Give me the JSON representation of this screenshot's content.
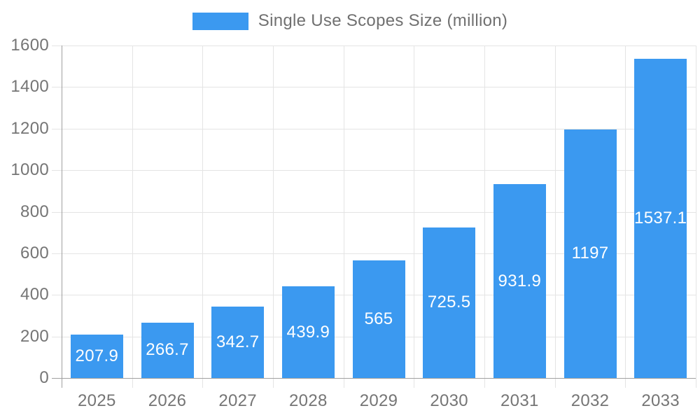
{
  "legend": {
    "label": "Single Use Scopes Size (million)"
  },
  "colors": {
    "bar": "#3B99F0",
    "grid": "#E4E4E4",
    "axis": "#A0A0A0",
    "tick_label": "#757575",
    "value_label": "#FFFFFF",
    "legend_label": "#707070",
    "background": "#FFFFFF"
  },
  "chart_data": {
    "type": "bar",
    "title": "",
    "series_name": "Single Use Scopes Size (million)",
    "categories": [
      "2025",
      "2026",
      "2027",
      "2028",
      "2029",
      "2030",
      "2031",
      "2032",
      "2033"
    ],
    "values": [
      207.9,
      266.7,
      342.7,
      439.9,
      565,
      725.5,
      931.9,
      1197,
      1537.1
    ],
    "value_labels": [
      "207.9",
      "266.7",
      "342.7",
      "439.9",
      "565",
      "725.5",
      "931.9",
      "1197",
      "1537.1"
    ],
    "xlabel": "",
    "ylabel": "",
    "ylim": [
      0,
      1600
    ],
    "yticks": [
      0,
      200,
      400,
      600,
      800,
      1000,
      1200,
      1400,
      1600
    ],
    "grid": true,
    "legend_position": "top",
    "value_labels_inside_bars": true
  }
}
